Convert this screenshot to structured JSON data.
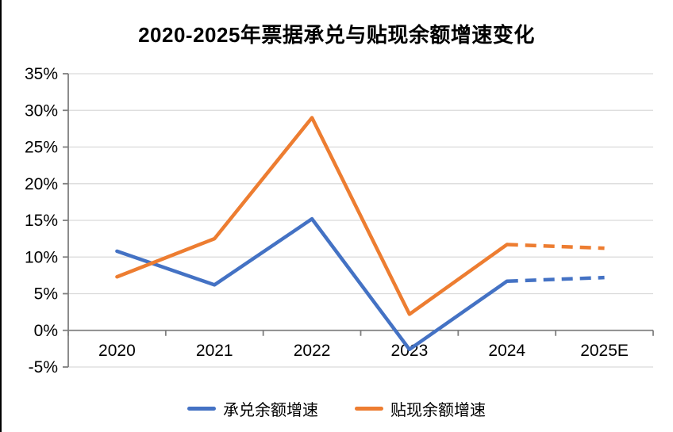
{
  "page": {
    "background": "#ffffff",
    "left_edge_color": "#000000"
  },
  "chart_data": {
    "type": "line",
    "title": "2020-2025年票据承兑与贴现余额增速变化",
    "categories": [
      "2020",
      "2021",
      "2022",
      "2023",
      "2024",
      "2025E"
    ],
    "series": [
      {
        "name": "承兑余额增速",
        "color": "#4472C4",
        "values": [
          10.8,
          6.2,
          15.2,
          -2.6,
          6.7,
          7.2
        ],
        "dash_start_index": 4
      },
      {
        "name": "贴现余额增速",
        "color": "#ED7D31",
        "values": [
          7.3,
          12.5,
          29.0,
          2.2,
          11.7,
          11.2
        ],
        "dash_start_index": 4
      }
    ],
    "ylim": [
      -5,
      35
    ],
    "ytick_step": 5,
    "ytick_labels": [
      "35%",
      "30%",
      "25%",
      "20%",
      "15%",
      "10%",
      "5%",
      "0%",
      "-5%"
    ],
    "xlabel": "",
    "ylabel": "",
    "grid": true,
    "gridline_color": "#D9D9D9",
    "axis_color": "#7F7F7F",
    "tick_label_color": "#000000",
    "legend_position": "bottom",
    "forecast_note": "segment from 2024 to 2025E drawn dashed for both series"
  }
}
